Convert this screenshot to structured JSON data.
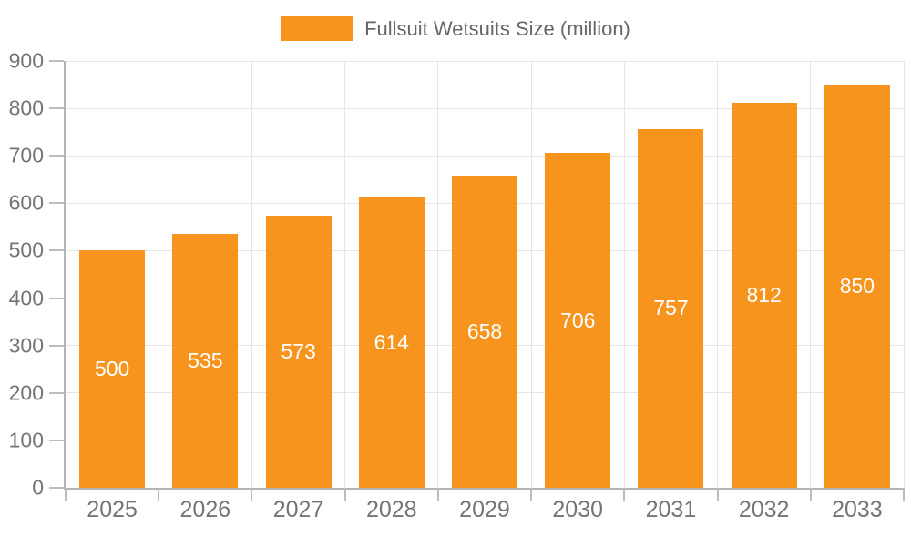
{
  "chart_data": {
    "type": "bar",
    "title": "",
    "legend": {
      "label": "Fullsuit Wetsuits Size (million)",
      "position": "top"
    },
    "categories": [
      "2025",
      "2026",
      "2027",
      "2028",
      "2029",
      "2030",
      "2031",
      "2032",
      "2033"
    ],
    "series": [
      {
        "name": "Fullsuit Wetsuits Size (million)",
        "values": [
          500,
          535,
          573,
          614,
          658,
          706,
          757,
          812,
          850
        ]
      }
    ],
    "xlabel": "",
    "ylabel": "",
    "ylim": [
      0,
      900
    ],
    "yticks": [
      0,
      100,
      200,
      300,
      400,
      500,
      600,
      700,
      800,
      900
    ],
    "grid": true,
    "value_labels": "centered-inside-bars",
    "colors": {
      "bar": "#F7941E",
      "value_label": "#FFFFFF",
      "axis_text": "#757575",
      "legend_text": "#666666",
      "gridline": "#E5E5E5",
      "axis_line": "#B3B3B3",
      "tick": "#BCBCBC",
      "background": "#FFFFFF"
    }
  }
}
